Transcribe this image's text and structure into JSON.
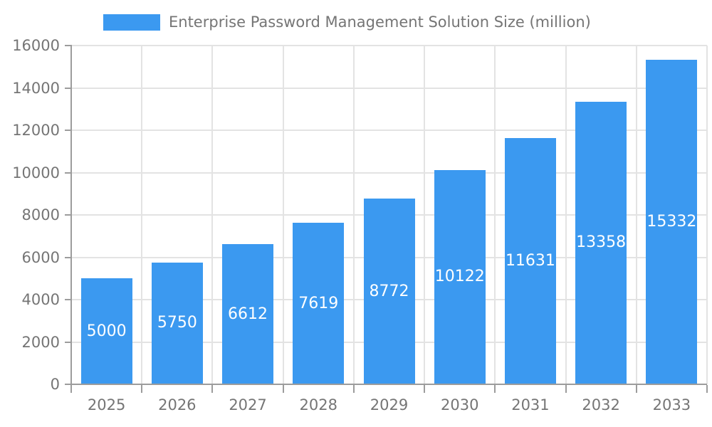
{
  "chart_data": {
    "type": "bar",
    "title": "Enterprise Password Management Solution Size (million)",
    "categories": [
      "2025",
      "2026",
      "2027",
      "2028",
      "2029",
      "2030",
      "2031",
      "2032",
      "2033"
    ],
    "values": [
      5000,
      5750,
      6612,
      7619,
      8772,
      10122,
      11631,
      13358,
      15332
    ],
    "xlabel": "",
    "ylabel": "",
    "ylim": [
      0,
      16000
    ],
    "ytick_step": 2000,
    "ytick_labels": [
      "0",
      "2000",
      "4000",
      "6000",
      "8000",
      "10000",
      "12000",
      "14000",
      "16000"
    ],
    "grid": true,
    "legend_position": "top",
    "bar_labels": true,
    "colors": {
      "bar": "#3B99F0",
      "bar_label": "#FFFFFF",
      "grid": "#E3E3E3",
      "axis": "#9C9C9C",
      "text": "#757575",
      "background": "#FFFFFF"
    }
  }
}
